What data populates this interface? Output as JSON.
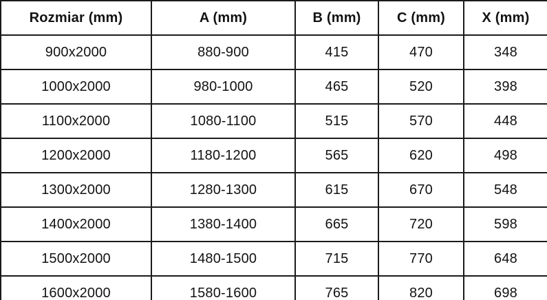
{
  "chart_data": {
    "type": "table",
    "title": "",
    "columns": [
      "Rozmiar (mm)",
      "A (mm)",
      "B (mm)",
      "C (mm)",
      "X (mm)"
    ],
    "rows": [
      [
        "900x2000",
        "880-900",
        "415",
        "470",
        "348"
      ],
      [
        "1000x2000",
        "980-1000",
        "465",
        "520",
        "398"
      ],
      [
        "1100x2000",
        "1080-1100",
        "515",
        "570",
        "448"
      ],
      [
        "1200x2000",
        "1180-1200",
        "565",
        "620",
        "498"
      ],
      [
        "1300x2000",
        "1280-1300",
        "615",
        "670",
        "548"
      ],
      [
        "1400x2000",
        "1380-1400",
        "665",
        "720",
        "598"
      ],
      [
        "1500x2000",
        "1480-1500",
        "715",
        "770",
        "648"
      ],
      [
        "1600x2000",
        "1580-1600",
        "765",
        "820",
        "698"
      ]
    ],
    "layout": {
      "grid": true,
      "border_color": "#1a1a1a",
      "background_color": "#ffffff",
      "text_color": "#121212",
      "header_bold": true,
      "cell_alignment": "center"
    }
  }
}
